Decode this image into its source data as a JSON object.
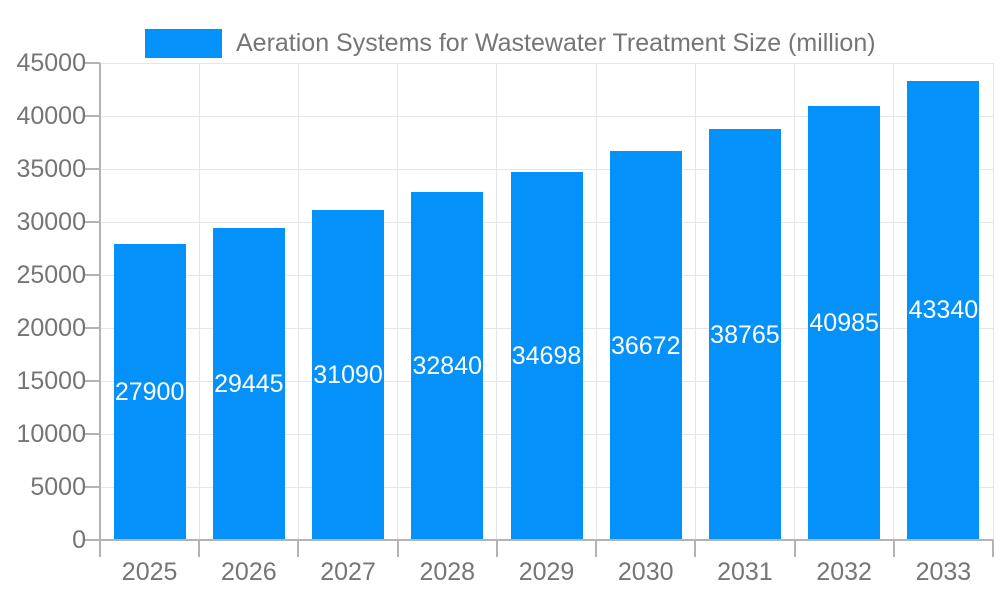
{
  "legend": {
    "label": "Aeration Systems for Wastewater Treatment Size (million)"
  },
  "chart_data": {
    "type": "bar",
    "title": "Aeration Systems for Wastewater Treatment Size (million)",
    "categories": [
      "2025",
      "2026",
      "2027",
      "2028",
      "2029",
      "2030",
      "2031",
      "2032",
      "2033"
    ],
    "series": [
      {
        "name": "Aeration Systems for Wastewater Treatment Size (million)",
        "values": [
          27900,
          29445,
          31090,
          32840,
          34698,
          36672,
          38765,
          40985,
          43340
        ]
      }
    ],
    "value_labels_shown": true,
    "xlabel": "",
    "ylabel": "",
    "ylim": [
      0,
      45000
    ],
    "yticks": [
      0,
      5000,
      10000,
      15000,
      20000,
      25000,
      30000,
      35000,
      40000,
      45000
    ],
    "grid": true,
    "legend_position": "top-left",
    "colors": {
      "bar": "#0591fa",
      "value_label": "#ffffff",
      "axis_text": "#757575",
      "gridline": "#e6e6e6",
      "axis_line": "#b3b3b3",
      "background": "#ffffff"
    }
  }
}
